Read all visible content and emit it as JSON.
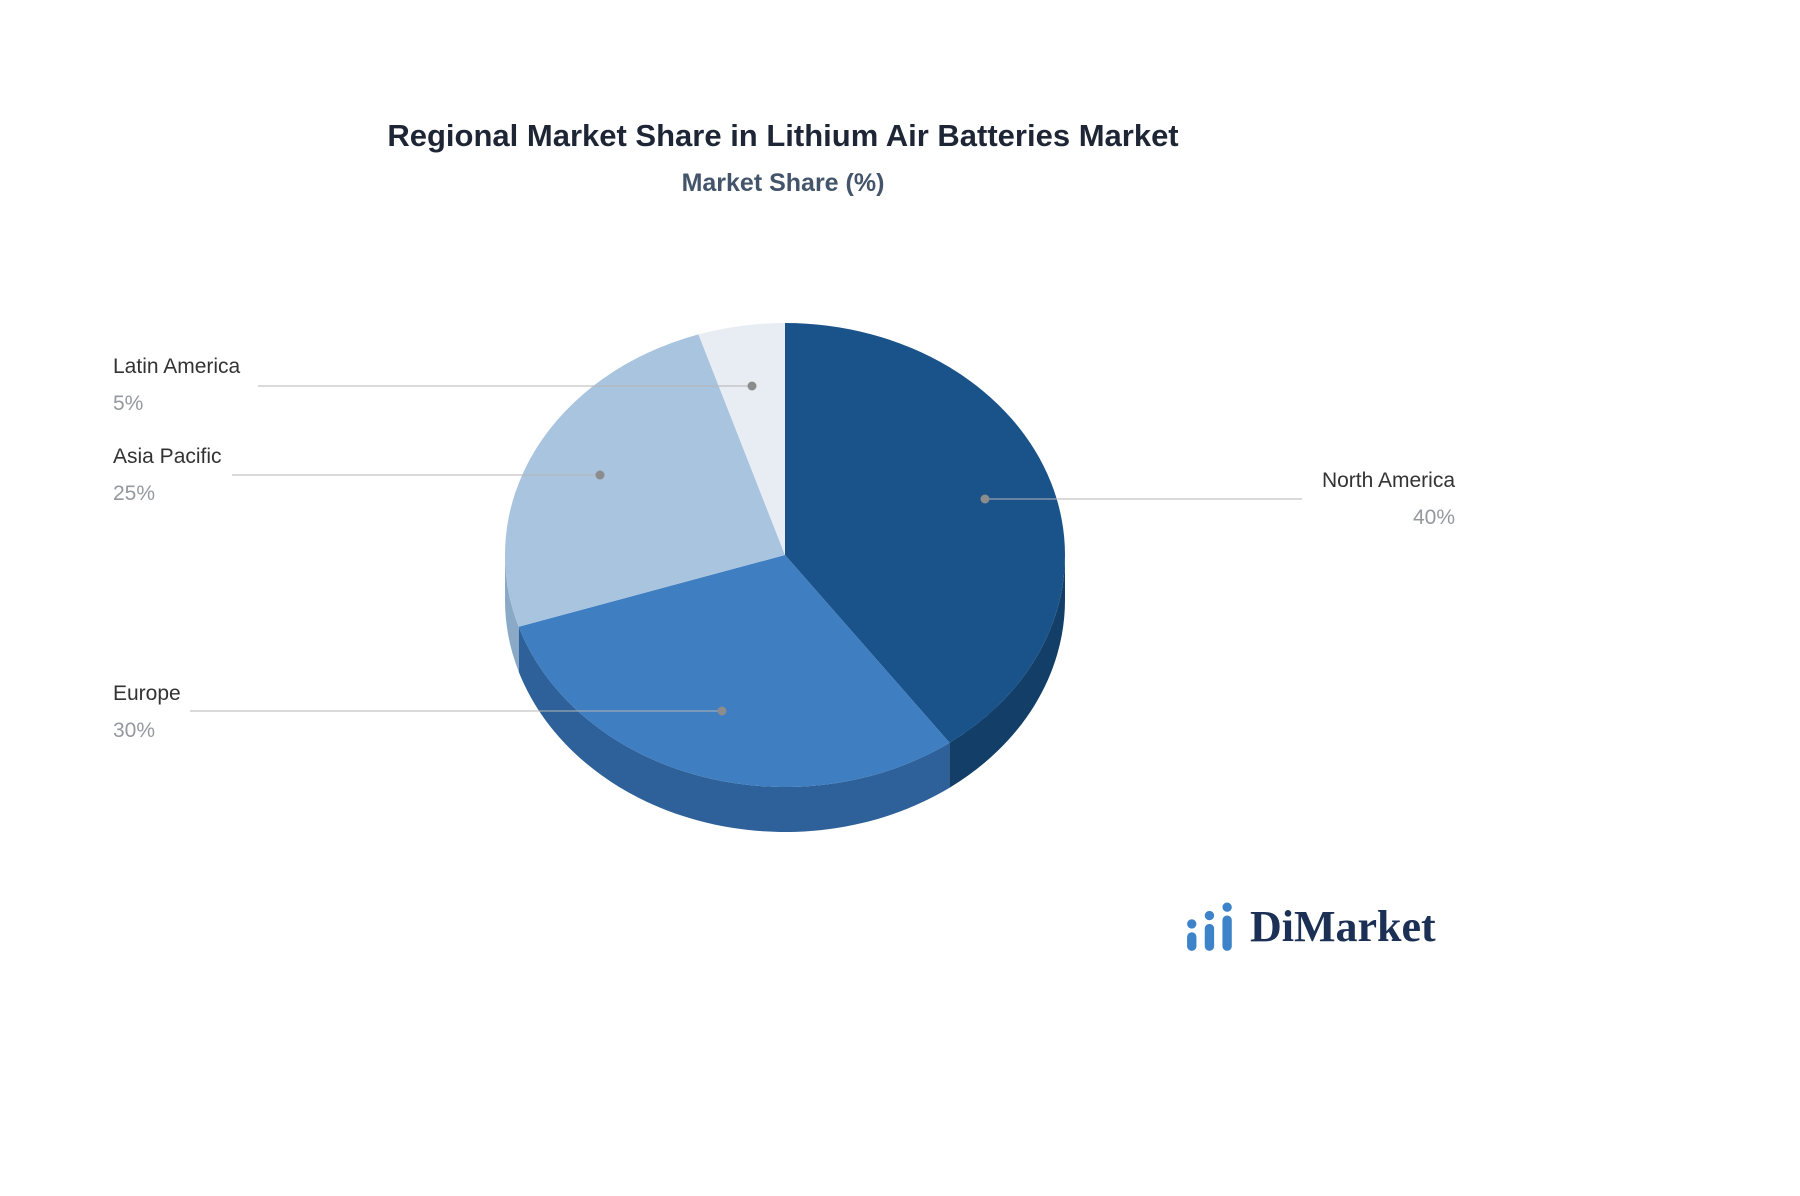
{
  "header": {
    "title": "Regional Market Share in Lithium Air Batteries Market",
    "subtitle": "Market Share (%)"
  },
  "chart_data": {
    "type": "pie",
    "style": "3d",
    "title": "Regional Market Share in Lithium Air Batteries Market",
    "subtitle": "Market Share (%)",
    "unit": "%",
    "legend_position": "none",
    "start_angle_deg": 0,
    "direction": "clockwise",
    "categories": [
      "North America",
      "Europe",
      "Asia Pacific",
      "Latin America"
    ],
    "values": [
      40,
      30,
      25,
      5
    ],
    "slices": [
      {
        "label": "North America",
        "value": 40,
        "value_label": "40%",
        "color": "#1A538A",
        "side_color": "#133E68"
      },
      {
        "label": "Europe",
        "value": 30,
        "value_label": "30%",
        "color": "#3E7EC1",
        "side_color": "#2E6199"
      },
      {
        "label": "Asia Pacific",
        "value": 25,
        "value_label": "25%",
        "color": "#A9C4DF",
        "side_color": "#8AA9C7"
      },
      {
        "label": "Latin America",
        "value": 5,
        "value_label": "5%",
        "color": "#E8EDF4",
        "side_color": "#C7CFDA"
      }
    ],
    "leader_line_color": "#b5b5b5",
    "leader_dot_color": "#8c8c8c"
  },
  "branding": {
    "name": "DiMarket",
    "text_color": "#1b3054",
    "icon_color": "#3D83CA"
  }
}
